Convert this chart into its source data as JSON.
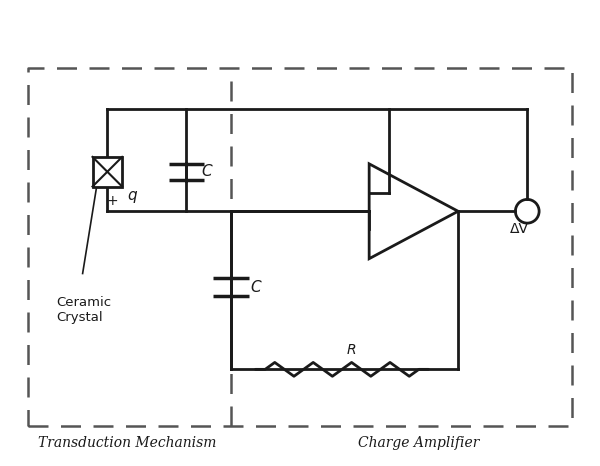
{
  "bg_color": "#ffffff",
  "line_color": "#1a1a1a",
  "dashed_color": "#555555",
  "label_transduction": "Transduction Mechanism",
  "label_charge_amp": "Charge Amplifier",
  "label_ceramic": "Ceramic\nCrystal",
  "label_q": "q",
  "label_C_left": "C",
  "label_C_feedback": "C",
  "label_R_feedback": "R",
  "label_deltaV": "ΔV",
  "label_plus": "+"
}
